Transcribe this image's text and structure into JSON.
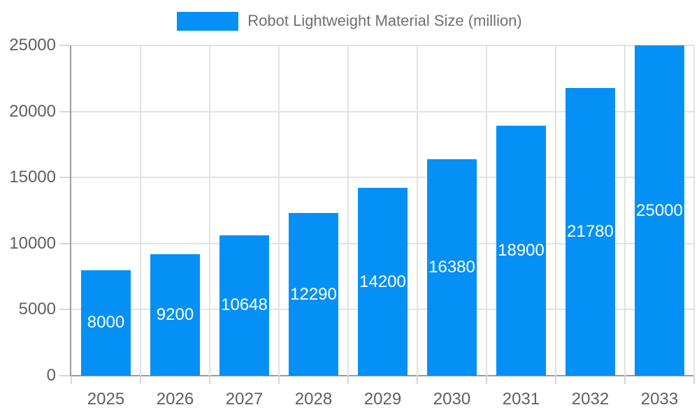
{
  "chart_data": {
    "type": "bar",
    "title": "Robot Lightweight Material Size (million)",
    "categories": [
      "2025",
      "2026",
      "2027",
      "2028",
      "2029",
      "2030",
      "2031",
      "2032",
      "2033"
    ],
    "values": [
      8000,
      9200,
      10648,
      12290,
      14200,
      16380,
      18900,
      21780,
      25000
    ],
    "value_labels": [
      "8000",
      "9200",
      "10648",
      "12290",
      "14200",
      "16380",
      "18900",
      "21780",
      "25000"
    ],
    "y_ticks": [
      0,
      5000,
      10000,
      15000,
      20000,
      25000
    ],
    "y_tick_labels": [
      "0",
      "5000",
      "10000",
      "15000",
      "20000",
      "25000"
    ],
    "ylim": [
      0,
      25000
    ],
    "grid": true,
    "legend_position": "top",
    "colors": {
      "bar": "#0590F5",
      "value_label": "#FFFFFF",
      "axis_label": "#5F5F5F",
      "legend_text": "#707070",
      "grid_line": "#E2E2E2",
      "axis_line": "#9B9B9B",
      "tick_mark": "#D6D6D6"
    }
  }
}
